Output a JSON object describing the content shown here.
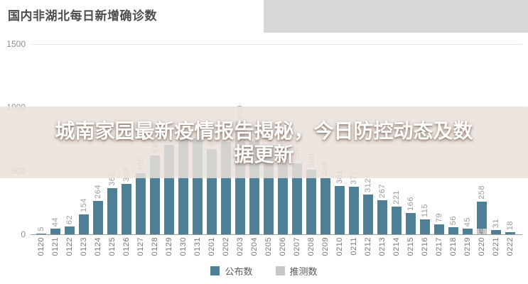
{
  "title": "国内非湖北每日新增确诊数",
  "overlay_text": "城南家园最新疫情报告揭秘，今日防控动态及数据更新",
  "legend": {
    "announced": "公布数",
    "estimated": "推测数"
  },
  "colors": {
    "bar_announced": "#4e7f94",
    "bar_estimated": "#c7c7c7",
    "overlay_band": "rgba(234,225,218,0.85)",
    "top_right_block": "#d8d8d8",
    "value_label": "#9b9b9b",
    "axis_label": "#8f8f8f"
  },
  "chart_data": {
    "type": "bar",
    "title": "国内非湖北每日新增确诊数",
    "categories": [
      "0120",
      "0121",
      "0122",
      "0123",
      "0124",
      "0125",
      "0126",
      "0127",
      "0128",
      "0129",
      "0130",
      "0131",
      "0201",
      "0202",
      "0203",
      "0204",
      "0205",
      "0206",
      "0207",
      "0208",
      "0209",
      "0210",
      "0211",
      "0212",
      "0213",
      "0214",
      "0215",
      "0216",
      "0217",
      "0218",
      "0219",
      "0220",
      "0221",
      "0222"
    ],
    "series": [
      {
        "name": "公布数",
        "values": [
          5,
          44,
          62,
          154,
          264,
          365,
          398,
          480,
          619,
          705,
          762,
          755,
          669,
          726,
          890,
          731,
          707,
          696,
          558,
          509,
          444,
          381,
          377,
          312,
          267,
          221,
          166,
          115,
          79,
          56,
          45,
          258,
          31,
          18
        ]
      },
      {
        "name": "推测数",
        "values": [
          null,
          null,
          null,
          null,
          null,
          null,
          null,
          null,
          null,
          null,
          null,
          null,
          null,
          null,
          null,
          null,
          null,
          null,
          null,
          null,
          null,
          null,
          null,
          null,
          null,
          null,
          null,
          null,
          null,
          null,
          null,
          45,
          null,
          null
        ]
      }
    ],
    "xlabel": "",
    "ylabel": "",
    "ylim": [
      0,
      1500
    ],
    "y_ticks": [
      1500,
      1000,
      500,
      0
    ],
    "grid": true,
    "bar_value_labels": true,
    "legend_position": "bottom"
  }
}
